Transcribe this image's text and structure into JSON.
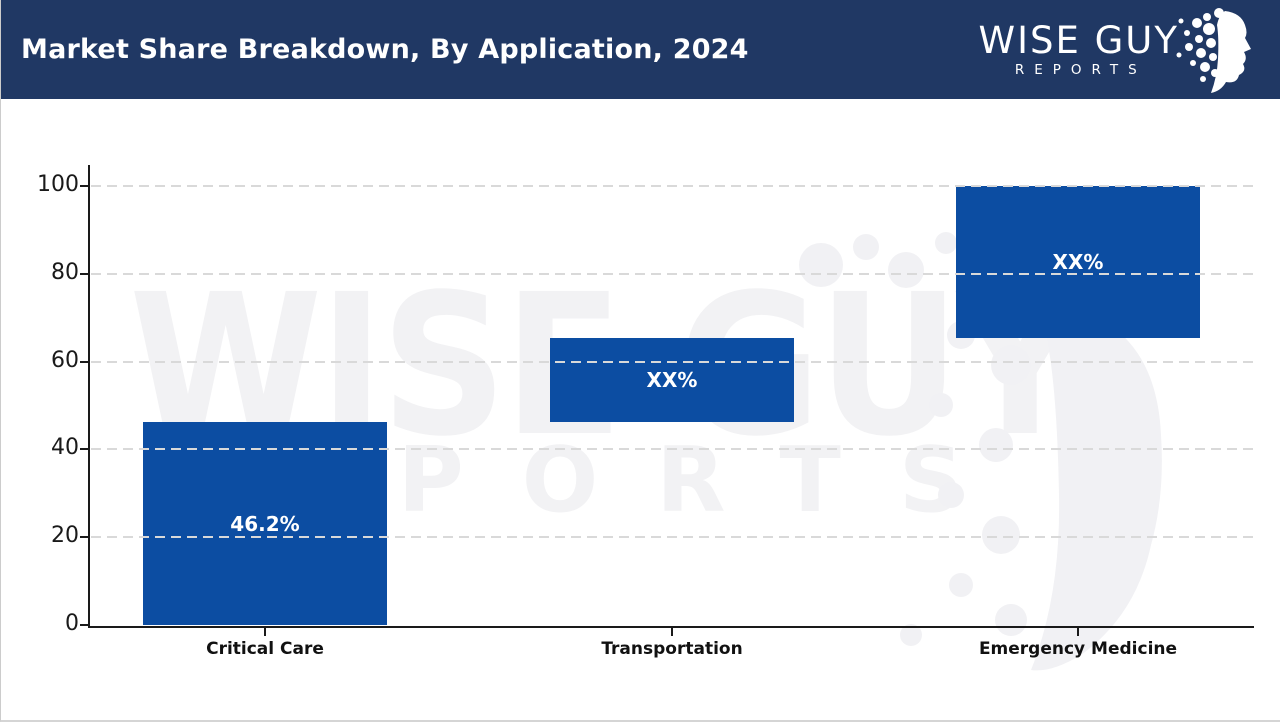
{
  "header": {
    "title": "Market Share Breakdown, By Application, 2024",
    "logo": {
      "line1": "WISE GUY",
      "line2": "REPORTS"
    }
  },
  "watermark": {
    "line1": "WISE GUY",
    "line2": "REPORTS"
  },
  "chart_data": {
    "type": "bar",
    "subtype": "waterfall",
    "title": "Market Share Breakdown, By Application, 2024",
    "categories": [
      "Critical Care",
      "Transportation",
      "Emergency Medicine"
    ],
    "bars": [
      {
        "category": "Critical Care",
        "start": 0,
        "end": 46.2,
        "height": 46.2,
        "label": "46.2%"
      },
      {
        "category": "Transportation",
        "start": 46.2,
        "end": 65.4,
        "height": 19.2,
        "label": "XX%"
      },
      {
        "category": "Emergency Medicine",
        "start": 65.4,
        "end": 100,
        "height": 34.6,
        "label": "XX%"
      }
    ],
    "yticks": [
      0,
      20,
      40,
      60,
      80,
      100
    ],
    "ylim": [
      0,
      107
    ],
    "xlabel": "",
    "ylabel": "",
    "grid": "horizontal-dashed",
    "legend": "none",
    "bar_color": "#0c4da2",
    "bar_label_color": "#ffffff"
  },
  "colors": {
    "header_bg": "#203864",
    "bar": "#0c4da2",
    "axis": "#1a1a1a",
    "gridline": "#d9d9d9",
    "watermark": "#f2f2f4",
    "frame_border": "#cccccc"
  }
}
